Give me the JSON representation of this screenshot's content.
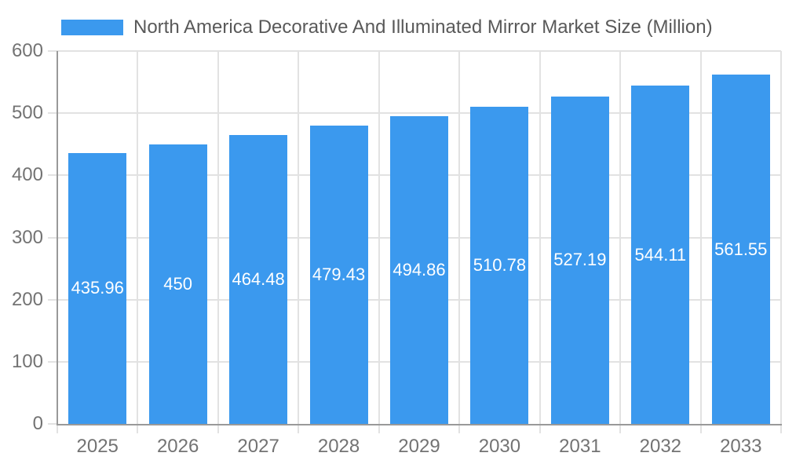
{
  "legend": {
    "label": "North America Decorative And Illuminated Mirror Market Size (Million)"
  },
  "chart_data": {
    "type": "bar",
    "title": "North America Decorative And Illuminated Mirror Market Size (Million)",
    "categories": [
      "2025",
      "2026",
      "2027",
      "2028",
      "2029",
      "2030",
      "2031",
      "2032",
      "2033"
    ],
    "values": [
      435.96,
      450,
      464.48,
      479.43,
      494.86,
      510.78,
      527.19,
      544.11,
      561.55
    ],
    "value_labels": [
      "435.96",
      "450",
      "464.48",
      "479.43",
      "494.86",
      "510.78",
      "527.19",
      "544.11",
      "561.55"
    ],
    "xlabel": "",
    "ylabel": "",
    "ylim": [
      0,
      600
    ],
    "yticks": [
      0,
      100,
      200,
      300,
      400,
      500,
      600
    ],
    "ytick_labels": [
      "0",
      "100",
      "200",
      "300",
      "400",
      "500",
      "600"
    ],
    "grid": true,
    "legend_position": "top-left",
    "colors": {
      "bar": "#3b99ee",
      "axis": "#999999",
      "grid": "#e2e2e2",
      "tick_text": "#737373",
      "legend_text": "#595959",
      "value_label": "#ffffff",
      "background": "#ffffff"
    }
  }
}
